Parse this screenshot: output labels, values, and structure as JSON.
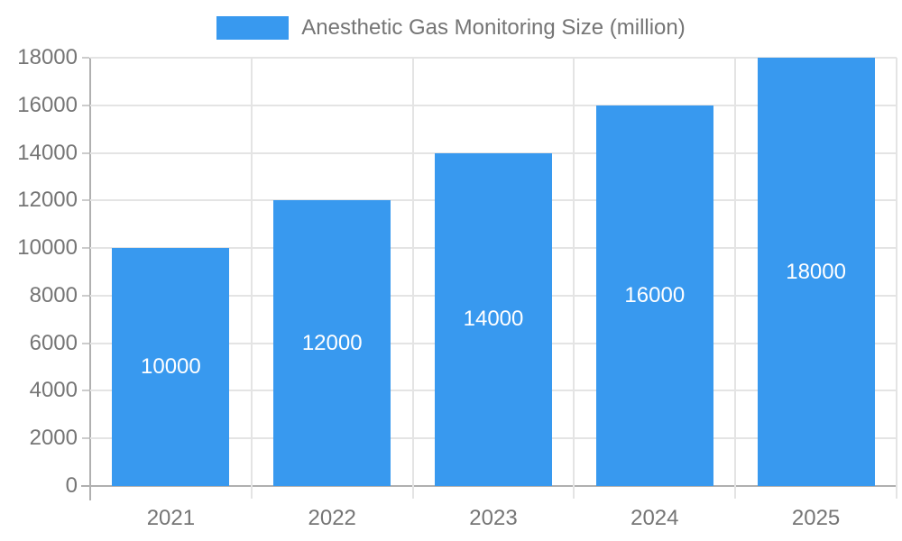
{
  "chart_data": {
    "type": "bar",
    "title": "",
    "legend_label": "Anesthetic Gas Monitoring Size (million)",
    "categories": [
      "2021",
      "2022",
      "2023",
      "2024",
      "2025"
    ],
    "values": [
      10000,
      12000,
      14000,
      16000,
      18000
    ],
    "bar_labels": [
      "10000",
      "12000",
      "14000",
      "16000",
      "18000"
    ],
    "ylim": [
      0,
      18000
    ],
    "ytick_step": 2000,
    "ytick_labels": [
      "0",
      "2000",
      "4000",
      "6000",
      "8000",
      "10000",
      "12000",
      "14000",
      "16000",
      "18000"
    ],
    "grid": true,
    "legend_position": "top-center",
    "bar_label_position": "inside-center",
    "colors": {
      "bar": "#3899EF",
      "axis_line": "#b0b0b0",
      "gridline": "#e4e4e4",
      "tick": "#cccccc",
      "text": "#757575",
      "bar_label_text": "#ffffff",
      "background": "#ffffff"
    }
  }
}
